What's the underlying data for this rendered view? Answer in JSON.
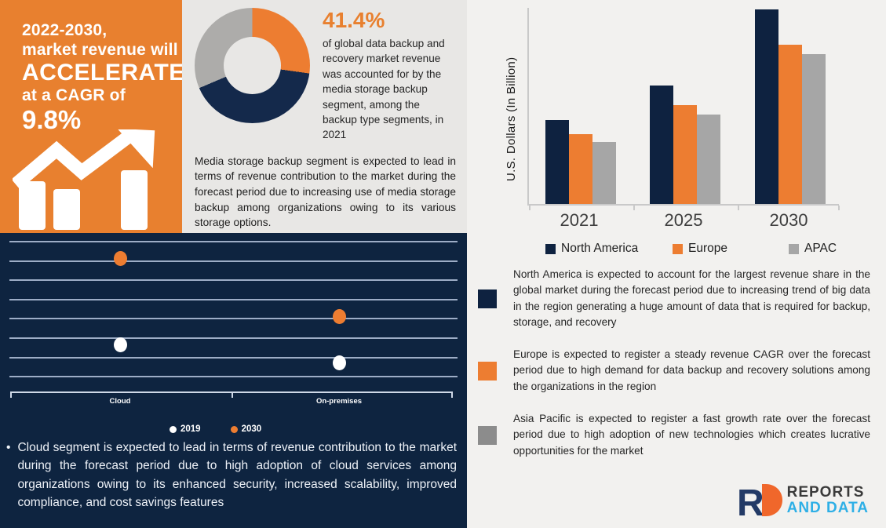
{
  "colors": {
    "orange": "#E8802F",
    "bar_orange": "#ED7D31",
    "navy": "#14294B",
    "bar_navy": "#0E2240",
    "panel_navy": "#0E2440",
    "gray": "#A6A6A6",
    "panel_gray": "#E8E7E5",
    "panel_light": "#F2F1EF",
    "logo_blue": "#2EAFE6"
  },
  "left": {
    "headline": {
      "line1": "2022-2030,",
      "line2": "market revenue will",
      "line3": "ACCELERATE",
      "line4": "at a CAGR of",
      "line5": "9.8%"
    },
    "segment_panel": {
      "stat_value": "41.4%",
      "stat_text": "of global data backup and recovery market revenue was accounted for by the media storage backup segment, among the backup type segments, in 2021",
      "paragraph": "Media storage backup segment is expected to lead in terms of revenue contribution to the market during the forecast period due to increasing use of media storage backup among organizations owing to its various storage options."
    },
    "cloud_bullet": "Cloud segment is expected to lead in terms of revenue contribution to the market during the forecast period due to high adoption of cloud services among organizations owing to its enhanced security, increased scalability, improved compliance, and cost savings features"
  },
  "right": {
    "paragraphs": [
      {
        "bullet_color": "#0E2240",
        "text": "North America is expected to account for the largest revenue share in the global market during the forecast period due to increasing trend of big data in the region generating a huge amount of data that is required for backup, storage, and recovery"
      },
      {
        "bullet_color": "#ED7D31",
        "text": "Europe is expected to register a steady revenue CAGR over the forecast period due to high demand for data backup and recovery solutions among the organizations in the region"
      },
      {
        "bullet_color": "#8C8C8C",
        "text": "Asia Pacific is expected to register a fast growth rate over the forecast period due to high adoption of new technologies which creates lucrative opportunities for the market"
      }
    ],
    "logo": {
      "line1": "REPORTS",
      "line2": "AND DATA"
    }
  },
  "chart_data": [
    {
      "type": "pie",
      "subtype": "donut",
      "note": "unlabeled donut; only the navy slice is described by the 41.4% stat (media storage backup share, 2021); other slice values estimated from arc angles",
      "start_angle": "top, clockwise",
      "slices": [
        {
          "label": "",
          "value": 27.2,
          "color": "#ED7D31"
        },
        {
          "label": "Media storage backup",
          "value": 41.4,
          "color": "#14294B"
        },
        {
          "label": "",
          "value": 31.4,
          "color": "#ADACAA"
        }
      ]
    },
    {
      "type": "bar",
      "title": "",
      "ylabel": "U.S. Dollars (In Billion)",
      "xlabel": "",
      "categories": [
        "2021",
        "2025",
        "2030"
      ],
      "series": [
        {
          "name": "North America",
          "color": "#0E2240",
          "values": [
            43,
            61,
            100
          ]
        },
        {
          "name": "Europe",
          "color": "#ED7D31",
          "values": [
            36,
            51,
            82
          ]
        },
        {
          "name": "APAC",
          "color": "#A6A6A6",
          "values": [
            32,
            46,
            77
          ]
        }
      ],
      "note": "y-axis has no tick labels; values are relative bar heights with tallest bar = 100",
      "legend_position": "bottom",
      "grid": false
    },
    {
      "type": "scatter",
      "subtype": "dot-plot",
      "categories": [
        "Cloud",
        "On-premises"
      ],
      "series": [
        {
          "name": "2019",
          "color": "#FFFFFF",
          "values": [
            31,
            19
          ]
        },
        {
          "name": "2030",
          "color": "#ED7D31",
          "values": [
            88,
            50
          ]
        }
      ],
      "note": "y-axis has no tick labels; values are relative heights (0 = axis, 100 = top gridline); 8 horizontal gridlines",
      "legend_position": "bottom",
      "grid": true
    }
  ]
}
